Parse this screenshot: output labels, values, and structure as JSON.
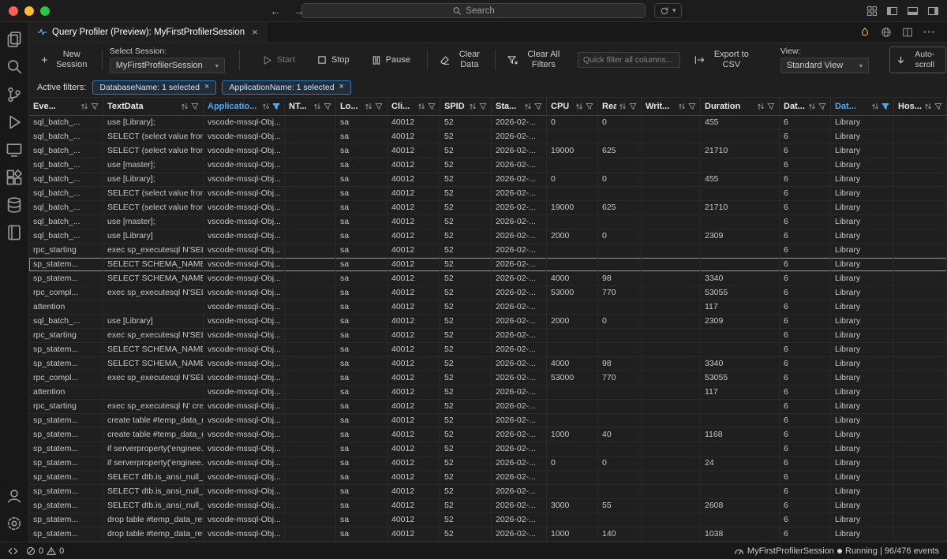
{
  "colors": {
    "accent": "#4daafc",
    "icon_gray": "#8a8a8a",
    "flame": "#e8a053"
  },
  "titlebar": {
    "search_placeholder": "Search"
  },
  "tab": {
    "title": "Query Profiler (Preview): MyFirstProfilerSession",
    "close": "×"
  },
  "toolbar": {
    "new_session": "New Session",
    "select_session_label": "Select Session:",
    "session_value": "MyFirstProfilerSession",
    "start": "Start",
    "stop": "Stop",
    "pause": "Pause",
    "clear_data": "Clear Data",
    "clear_all_filters": "Clear All Filters",
    "quick_filter_placeholder": "Quick filter all columns...",
    "export_csv": "Export to CSV",
    "view_label": "View:",
    "view_value": "Standard View",
    "autoscroll": "Auto-scroll"
  },
  "filters": {
    "label": "Active filters:",
    "chips": [
      "DatabaseName: 1 selected",
      "ApplicationName: 1 selected"
    ]
  },
  "activity_bar": {
    "top": [
      "explorer",
      "search",
      "source-control",
      "run-debug",
      "remote-explorer",
      "extensions",
      "database",
      "notebook"
    ],
    "bottom": [
      "account",
      "settings"
    ]
  },
  "table": {
    "selected_row_index": 10,
    "columns": [
      {
        "key": "eventclass",
        "label": "Eve...",
        "width": 94,
        "filtered": false
      },
      {
        "key": "textdata",
        "label": "TextData",
        "width": 127,
        "filtered": false
      },
      {
        "key": "applicationname",
        "label": "Applicatio...",
        "width": 103,
        "filtered": true
      },
      {
        "key": "ntusername",
        "label": "NT...",
        "width": 65,
        "filtered": false
      },
      {
        "key": "loginname",
        "label": "Lo...",
        "width": 65,
        "filtered": false
      },
      {
        "key": "clientprocessid",
        "label": "Cli...",
        "width": 67,
        "filtered": false
      },
      {
        "key": "spid",
        "label": "SPID",
        "width": 65,
        "filtered": false
      },
      {
        "key": "starttime",
        "label": "Sta...",
        "width": 70,
        "filtered": false
      },
      {
        "key": "cpu",
        "label": "CPU",
        "width": 65,
        "filtered": false
      },
      {
        "key": "reads",
        "label": "Rea...",
        "width": 55,
        "filtered": false
      },
      {
        "key": "writes",
        "label": "Writ...",
        "width": 75,
        "filtered": false
      },
      {
        "key": "duration",
        "label": "Duration",
        "width": 100,
        "filtered": false
      },
      {
        "key": "databaseid",
        "label": "Dat...",
        "width": 65,
        "filtered": false
      },
      {
        "key": "databasename",
        "label": "Dat...",
        "width": 80,
        "filtered": true
      },
      {
        "key": "hostname",
        "label": "Hos...",
        "width": 60,
        "filtered": false
      }
    ],
    "rows": [
      [
        "sql_batch_...",
        "use [Library];",
        "vscode-mssql-Obj...",
        "",
        "sa",
        "40012",
        "52",
        "2026-02-...",
        "0",
        "0",
        "",
        "455",
        "6",
        "Library",
        ""
      ],
      [
        "sql_batch_...",
        "SELECT (select value from ...",
        "vscode-mssql-Obj...",
        "",
        "sa",
        "40012",
        "52",
        "2026-02-...",
        "",
        "",
        "",
        "",
        "6",
        "Library",
        ""
      ],
      [
        "sql_batch_...",
        "SELECT (select value from ...",
        "vscode-mssql-Obj...",
        "",
        "sa",
        "40012",
        "52",
        "2026-02-...",
        "19000",
        "625",
        "",
        "21710",
        "6",
        "Library",
        ""
      ],
      [
        "sql_batch_...",
        "use [master];",
        "vscode-mssql-Obj...",
        "",
        "sa",
        "40012",
        "52",
        "2026-02-...",
        "",
        "",
        "",
        "",
        "6",
        "Library",
        ""
      ],
      [
        "sql_batch_...",
        "use [Library];",
        "vscode-mssql-Obj...",
        "",
        "sa",
        "40012",
        "52",
        "2026-02-...",
        "0",
        "0",
        "",
        "455",
        "6",
        "Library",
        ""
      ],
      [
        "sql_batch_...",
        "SELECT (select value from ...",
        "vscode-mssql-Obj...",
        "",
        "sa",
        "40012",
        "52",
        "2026-02-...",
        "",
        "",
        "",
        "",
        "6",
        "Library",
        ""
      ],
      [
        "sql_batch_...",
        "SELECT (select value from ...",
        "vscode-mssql-Obj...",
        "",
        "sa",
        "40012",
        "52",
        "2026-02-...",
        "19000",
        "625",
        "",
        "21710",
        "6",
        "Library",
        ""
      ],
      [
        "sql_batch_...",
        "use [master];",
        "vscode-mssql-Obj...",
        "",
        "sa",
        "40012",
        "52",
        "2026-02-...",
        "",
        "",
        "",
        "",
        "6",
        "Library",
        ""
      ],
      [
        "sql_batch_...",
        "use [Library]",
        "vscode-mssql-Obj...",
        "",
        "sa",
        "40012",
        "52",
        "2026-02-...",
        "2000",
        "0",
        "",
        "2309",
        "6",
        "Library",
        ""
      ],
      [
        "rpc_starting",
        "exec sp_executesql N'SEL...",
        "vscode-mssql-Obj...",
        "",
        "sa",
        "40012",
        "52",
        "2026-02-...",
        "",
        "",
        "",
        "",
        "6",
        "Library",
        ""
      ],
      [
        "sp_statem...",
        "SELECT SCHEMA_NAME(t...",
        "vscode-mssql-Obj...",
        "",
        "sa",
        "40012",
        "52",
        "2026-02-...",
        "",
        "",
        "",
        "",
        "6",
        "Library",
        ""
      ],
      [
        "sp_statem...",
        "SELECT SCHEMA_NAME(t...",
        "vscode-mssql-Obj...",
        "",
        "sa",
        "40012",
        "52",
        "2026-02-...",
        "4000",
        "98",
        "",
        "3340",
        "6",
        "Library",
        ""
      ],
      [
        "rpc_compl...",
        "exec sp_executesql N'SEL...",
        "vscode-mssql-Obj...",
        "",
        "sa",
        "40012",
        "52",
        "2026-02-...",
        "53000",
        "770",
        "",
        "53055",
        "6",
        "Library",
        ""
      ],
      [
        "attention",
        "",
        "vscode-mssql-Obj...",
        "",
        "sa",
        "40012",
        "52",
        "2026-02-...",
        "",
        "",
        "",
        "117",
        "6",
        "Library",
        ""
      ],
      [
        "sql_batch_...",
        "use [Library]",
        "vscode-mssql-Obj...",
        "",
        "sa",
        "40012",
        "52",
        "2026-02-...",
        "2000",
        "0",
        "",
        "2309",
        "6",
        "Library",
        ""
      ],
      [
        "rpc_starting",
        "exec sp_executesql N'SEL...",
        "vscode-mssql-Obj...",
        "",
        "sa",
        "40012",
        "52",
        "2026-02-...",
        "",
        "",
        "",
        "",
        "6",
        "Library",
        ""
      ],
      [
        "sp_statem...",
        "SELECT SCHEMA_NAME(t...",
        "vscode-mssql-Obj...",
        "",
        "sa",
        "40012",
        "52",
        "2026-02-...",
        "",
        "",
        "",
        "",
        "6",
        "Library",
        ""
      ],
      [
        "sp_statem...",
        "SELECT SCHEMA_NAME(t...",
        "vscode-mssql-Obj...",
        "",
        "sa",
        "40012",
        "52",
        "2026-02-...",
        "4000",
        "98",
        "",
        "3340",
        "6",
        "Library",
        ""
      ],
      [
        "rpc_compl...",
        "exec sp_executesql N'SEL...",
        "vscode-mssql-Obj...",
        "",
        "sa",
        "40012",
        "52",
        "2026-02-...",
        "53000",
        "770",
        "",
        "53055",
        "6",
        "Library",
        ""
      ],
      [
        "attention",
        "",
        "vscode-mssql-Obj...",
        "",
        "sa",
        "40012",
        "52",
        "2026-02-...",
        "",
        "",
        "",
        "117",
        "6",
        "Library",
        ""
      ],
      [
        "rpc_starting",
        "exec sp_executesql N' crea...",
        "vscode-mssql-Obj...",
        "",
        "sa",
        "40012",
        "52",
        "2026-02-...",
        "",
        "",
        "",
        "",
        "6",
        "Library",
        ""
      ],
      [
        "sp_statem...",
        "create table #temp_data_r...",
        "vscode-mssql-Obj...",
        "",
        "sa",
        "40012",
        "52",
        "2026-02-...",
        "",
        "",
        "",
        "",
        "6",
        "Library",
        ""
      ],
      [
        "sp_statem...",
        "create table #temp_data_r...",
        "vscode-mssql-Obj...",
        "",
        "sa",
        "40012",
        "52",
        "2026-02-...",
        "1000",
        "40",
        "",
        "1168",
        "6",
        "Library",
        ""
      ],
      [
        "sp_statem...",
        "if serverproperty('enginee...",
        "vscode-mssql-Obj...",
        "",
        "sa",
        "40012",
        "52",
        "2026-02-...",
        "",
        "",
        "",
        "",
        "6",
        "Library",
        ""
      ],
      [
        "sp_statem...",
        "if serverproperty('enginee...",
        "vscode-mssql-Obj...",
        "",
        "sa",
        "40012",
        "52",
        "2026-02-...",
        "0",
        "0",
        "",
        "24",
        "6",
        "Library",
        ""
      ],
      [
        "sp_statem...",
        "SELECT dtb.is_ansi_null_d...",
        "vscode-mssql-Obj...",
        "",
        "sa",
        "40012",
        "52",
        "2026-02-...",
        "",
        "",
        "",
        "",
        "6",
        "Library",
        ""
      ],
      [
        "sp_statem...",
        "SELECT dtb.is_ansi_null_d...",
        "vscode-mssql-Obj...",
        "",
        "sa",
        "40012",
        "52",
        "2026-02-...",
        "",
        "",
        "",
        "",
        "6",
        "Library",
        ""
      ],
      [
        "sp_statem...",
        "SELECT dtb.is_ansi_null_d...",
        "vscode-mssql-Obj...",
        "",
        "sa",
        "40012",
        "52",
        "2026-02-...",
        "3000",
        "55",
        "",
        "2608",
        "6",
        "Library",
        ""
      ],
      [
        "sp_statem...",
        "drop table #temp_data_ret...",
        "vscode-mssql-Obj...",
        "",
        "sa",
        "40012",
        "52",
        "2026-02-...",
        "",
        "",
        "",
        "",
        "6",
        "Library",
        ""
      ],
      [
        "sp_statem...",
        "drop table #temp_data_ret...",
        "vscode-mssql-Obj...",
        "",
        "sa",
        "40012",
        "52",
        "2026-02-...",
        "1000",
        "140",
        "",
        "1038",
        "6",
        "Library",
        ""
      ]
    ]
  },
  "statusbar": {
    "errors": "0",
    "warnings": "0",
    "session": "MyFirstProfilerSession",
    "status": "Running | 96/476 events"
  }
}
